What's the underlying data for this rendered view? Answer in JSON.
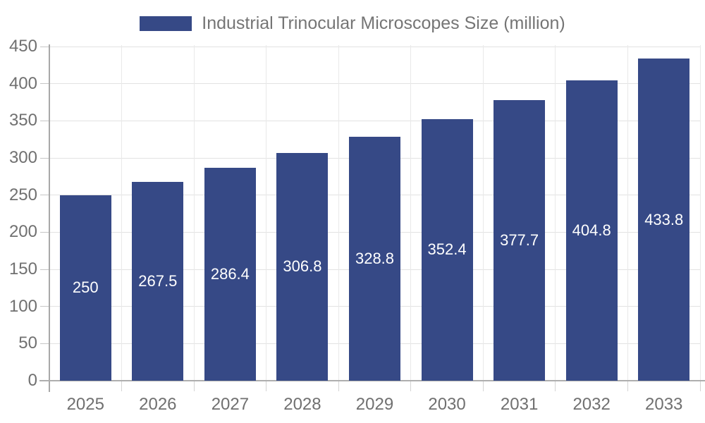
{
  "chart_data": {
    "type": "bar",
    "title": "Industrial Trinocular Microscopes Size (million)",
    "legend_label": "Industrial Trinocular Microscopes Size (million)",
    "categories": [
      "2025",
      "2026",
      "2027",
      "2028",
      "2029",
      "2030",
      "2031",
      "2032",
      "2033"
    ],
    "values": [
      250,
      267.5,
      286.4,
      306.8,
      328.8,
      352.4,
      377.7,
      404.8,
      433.8
    ],
    "value_labels": [
      "250",
      "267.5",
      "286.4",
      "306.8",
      "328.8",
      "352.4",
      "377.7",
      "404.8",
      "433.8"
    ],
    "ylim": [
      0,
      450
    ],
    "yticks": [
      0,
      50,
      100,
      150,
      200,
      250,
      300,
      350,
      400,
      450
    ],
    "grid": true,
    "legend_position": "top-center",
    "bar_color": "#364986",
    "bar_label_color": "#ffffff",
    "axis_label_color": "#707070",
    "legend_text_color": "#757575"
  }
}
